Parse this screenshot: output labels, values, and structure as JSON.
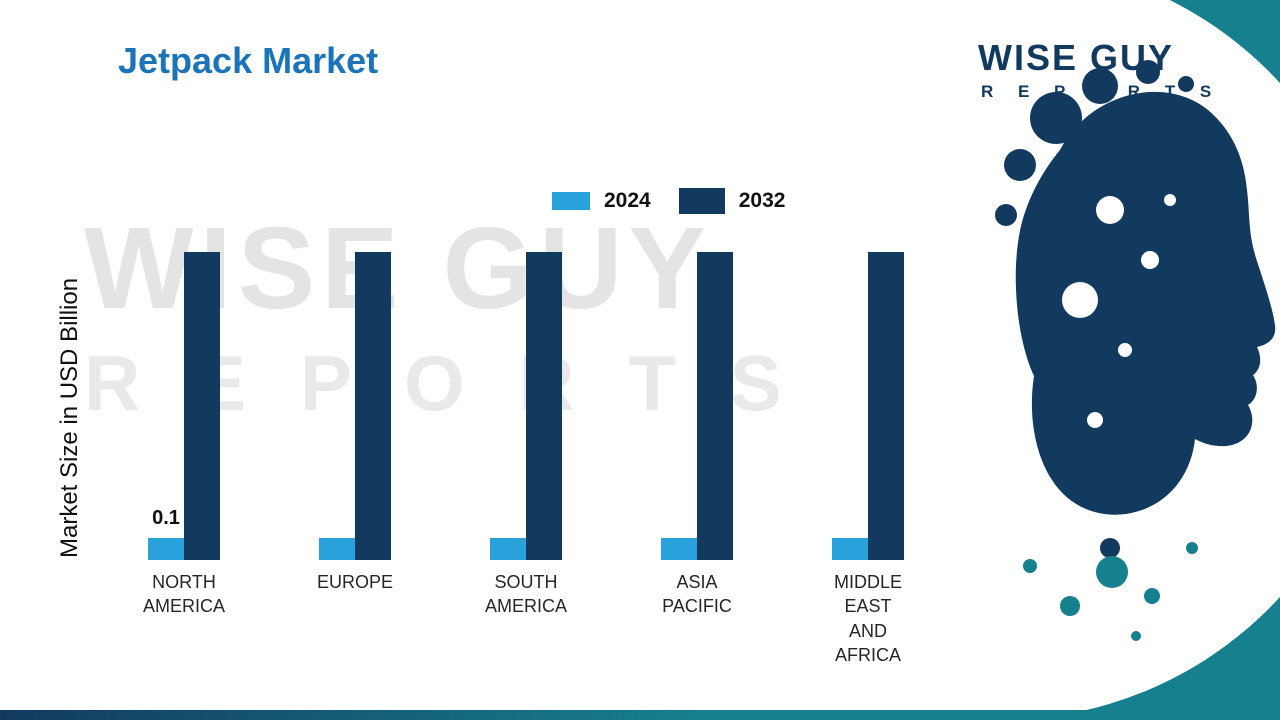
{
  "page": {
    "title": "Jetpack Market"
  },
  "branding": {
    "logo_line1": "WISE GUY",
    "logo_line2": "R E P O R T S",
    "teal": "#17808E",
    "navy": "#123A5F"
  },
  "watermark": {
    "line1": "WISE GUY",
    "line2": "R E P O R T S"
  },
  "chart_data": {
    "type": "bar",
    "title": "Jetpack Market",
    "ylabel": "Market Size in USD Billion",
    "xlabel": "",
    "grid": false,
    "legend_position": "top",
    "ylim": [
      0,
      1.4
    ],
    "categories": [
      "NORTH AMERICA",
      "EUROPE",
      "SOUTH AMERICA",
      "ASIA PACIFIC",
      "MIDDLE EAST AND AFRICA"
    ],
    "categories_display": [
      [
        "NORTH",
        "AMERICA"
      ],
      [
        "EUROPE"
      ],
      [
        "SOUTH",
        "AMERICA"
      ],
      [
        "ASIA",
        "PACIFIC"
      ],
      [
        "MIDDLE",
        "EAST",
        "AND",
        "AFRICA"
      ]
    ],
    "series": [
      {
        "name": "2024",
        "color": "#29A2DC",
        "values": [
          0.1,
          0.1,
          0.1,
          0.1,
          0.1
        ],
        "value_labels": [
          "0.1",
          "",
          "",
          "",
          ""
        ]
      },
      {
        "name": "2032",
        "color": "#123A5F",
        "values": [
          1.4,
          1.4,
          1.4,
          1.4,
          1.4
        ],
        "value_labels": [
          "",
          "",
          "",
          "",
          ""
        ]
      }
    ]
  }
}
